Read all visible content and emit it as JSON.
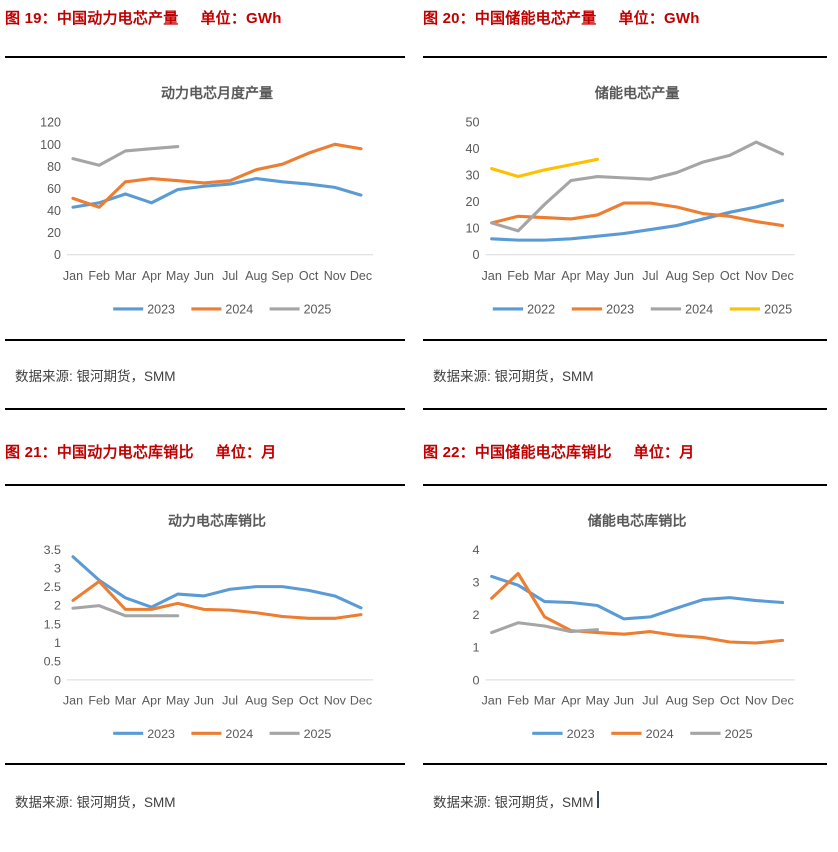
{
  "colors": {
    "caption_red": "#C00000",
    "axis_text": "#595959",
    "baseline_gray": "#D9D9D9",
    "series_blue": "#5B9BD5",
    "series_orange": "#ED7D31",
    "series_gray": "#A5A5A5",
    "series_yellow": "#FFC000"
  },
  "figures": [
    {
      "caption": "图 19：中国动力电芯产量",
      "unit": "单位：GWh",
      "source": "数据来源: 银河期货，SMM"
    },
    {
      "caption": "图 20：中国储能电芯产量",
      "unit": "单位：GWh",
      "source": "数据来源: 银河期货，SMM"
    },
    {
      "caption": "图 21：中国动力电芯库销比",
      "unit": "单位：月",
      "source": "数据来源: 银河期货，SMM"
    },
    {
      "caption": "图 22：中国储能电芯库销比",
      "unit": "单位：月",
      "source": "数据来源: 银河期货，SMM"
    }
  ],
  "chart_data": [
    {
      "type": "line",
      "title": "动力电芯月度产量",
      "categories": [
        "Jan",
        "Feb",
        "Mar",
        "Apr",
        "May",
        "Jun",
        "Jul",
        "Aug",
        "Sep",
        "Oct",
        "Nov",
        "Dec"
      ],
      "xlabel": "",
      "ylabel": "",
      "ylim": [
        0,
        120
      ],
      "ytick_step": 20,
      "grid": false,
      "legend_position": "bottom",
      "series": [
        {
          "name": "2023",
          "color": "#5B9BD5",
          "values": [
            43,
            47,
            55,
            47,
            59,
            62,
            64,
            69,
            66,
            64,
            61,
            54
          ]
        },
        {
          "name": "2024",
          "color": "#ED7D31",
          "values": [
            51,
            43,
            66,
            69,
            67,
            65,
            67,
            77,
            82,
            92,
            100,
            96
          ]
        },
        {
          "name": "2025",
          "color": "#A5A5A5",
          "values": [
            87,
            81,
            94,
            96,
            98
          ]
        }
      ]
    },
    {
      "type": "line",
      "title": "储能电芯产量",
      "categories": [
        "Jan",
        "Feb",
        "Mar",
        "Apr",
        "May",
        "Jun",
        "Jul",
        "Aug",
        "Sep",
        "Oct",
        "Nov",
        "Dec"
      ],
      "xlabel": "",
      "ylabel": "",
      "ylim": [
        0,
        50
      ],
      "ytick_step": 10,
      "grid": false,
      "legend_position": "bottom",
      "series": [
        {
          "name": "2022",
          "color": "#5B9BD5",
          "values": [
            6,
            5.5,
            5.5,
            6,
            7,
            8,
            9.5,
            11,
            13.5,
            16,
            18,
            20.5
          ]
        },
        {
          "name": "2023",
          "color": "#ED7D31",
          "values": [
            12,
            14.5,
            14,
            13.5,
            15,
            19.5,
            19.5,
            18,
            15.5,
            14.5,
            12.5,
            11
          ]
        },
        {
          "name": "2024",
          "color": "#A5A5A5",
          "values": [
            12,
            9,
            19,
            28,
            29.5,
            29,
            28.5,
            31,
            35,
            37.5,
            42.5,
            38
          ]
        },
        {
          "name": "2025",
          "color": "#FFC000",
          "values": [
            32.5,
            29.5,
            32,
            34,
            36
          ]
        }
      ]
    },
    {
      "type": "line",
      "title": "动力电芯库销比",
      "categories": [
        "Jan",
        "Feb",
        "Mar",
        "Apr",
        "May",
        "Jun",
        "Jul",
        "Aug",
        "Sep",
        "Oct",
        "Nov",
        "Dec"
      ],
      "xlabel": "",
      "ylabel": "",
      "ylim": [
        0,
        3.5
      ],
      "ytick_step": 0.5,
      "grid": false,
      "legend_position": "bottom",
      "series": [
        {
          "name": "2023",
          "color": "#5B9BD5",
          "values": [
            3.3,
            2.67,
            2.2,
            1.95,
            2.3,
            2.25,
            2.43,
            2.5,
            2.5,
            2.4,
            2.25,
            1.93
          ]
        },
        {
          "name": "2024",
          "color": "#ED7D31",
          "values": [
            2.13,
            2.64,
            1.89,
            1.89,
            2.05,
            1.89,
            1.87,
            1.8,
            1.7,
            1.65,
            1.65,
            1.75
          ]
        },
        {
          "name": "2025",
          "color": "#A5A5A5",
          "values": [
            1.92,
            1.99,
            1.72,
            1.72,
            1.72
          ]
        }
      ]
    },
    {
      "type": "line",
      "title": "储能电芯库销比",
      "categories": [
        "Jan",
        "Feb",
        "Mar",
        "Apr",
        "May",
        "Jun",
        "Jul",
        "Aug",
        "Sep",
        "Oct",
        "Nov",
        "Dec"
      ],
      "xlabel": "",
      "ylabel": "",
      "ylim": [
        0,
        4
      ],
      "ytick_step": 1,
      "grid": false,
      "legend_position": "bottom",
      "series": [
        {
          "name": "2023",
          "color": "#5B9BD5",
          "values": [
            3.17,
            2.9,
            2.4,
            2.37,
            2.28,
            1.87,
            1.93,
            2.2,
            2.46,
            2.52,
            2.43,
            2.37
          ]
        },
        {
          "name": "2024",
          "color": "#ED7D31",
          "values": [
            2.5,
            3.26,
            1.93,
            1.51,
            1.45,
            1.4,
            1.48,
            1.36,
            1.3,
            1.16,
            1.13,
            1.21
          ]
        },
        {
          "name": "2025",
          "color": "#A5A5A5",
          "values": [
            1.45,
            1.75,
            1.65,
            1.48,
            1.54
          ]
        }
      ]
    }
  ]
}
